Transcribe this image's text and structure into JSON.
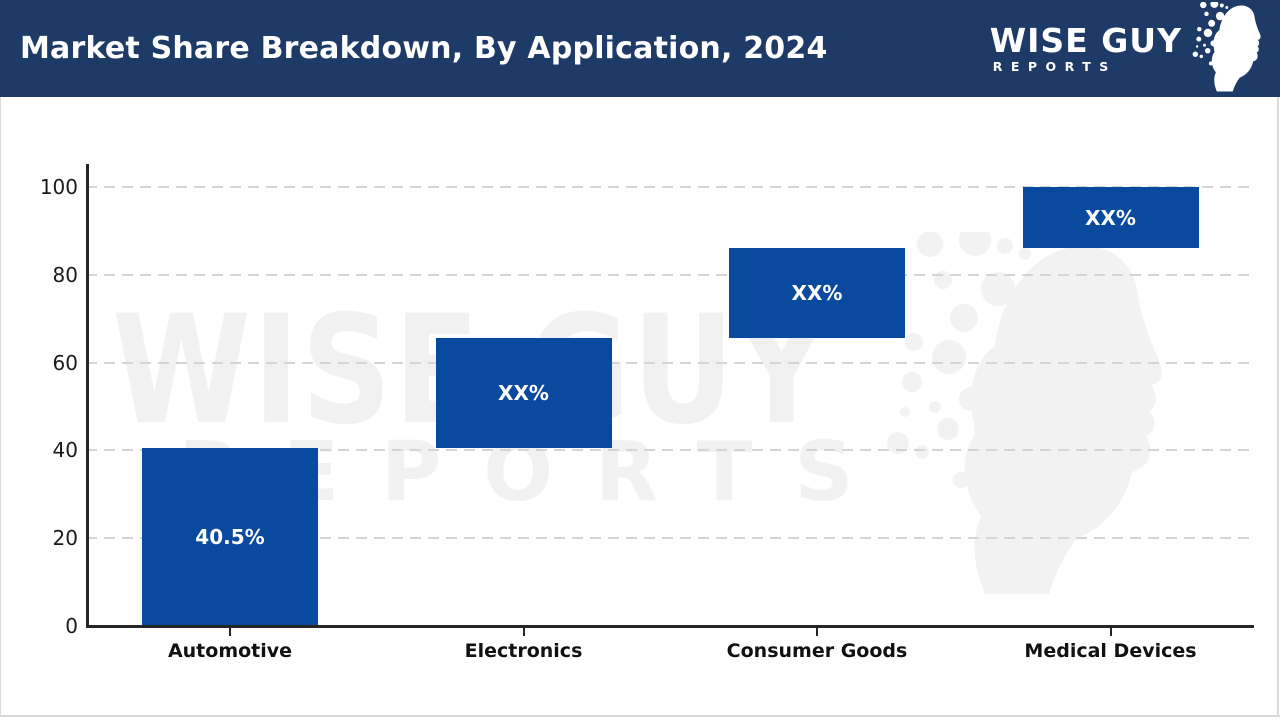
{
  "header": {
    "title": "Market Share Breakdown, By Application, 2024",
    "logo": {
      "line1": "WISE GUY",
      "line2": "REPORTS"
    }
  },
  "watermark": {
    "line1": "WISE GUY",
    "line2": "REPORTS"
  },
  "chart_data": {
    "type": "bar",
    "subtype": "waterfall",
    "title": "Market Share Breakdown, By Application, 2024",
    "categories": [
      "Automotive",
      "Electronics",
      "Consumer Goods",
      "Medical Devices"
    ],
    "segments": [
      {
        "category": "Automotive",
        "start": 0,
        "end": 40.5,
        "label": "40.5%"
      },
      {
        "category": "Electronics",
        "start": 40.5,
        "end": 65.5,
        "label": "XX%"
      },
      {
        "category": "Consumer Goods",
        "start": 65.5,
        "end": 86,
        "label": "XX%"
      },
      {
        "category": "Medical Devices",
        "start": 86,
        "end": 100,
        "label": "XX%"
      }
    ],
    "xlabel": "",
    "ylabel": "",
    "y_ticks": [
      0,
      20,
      40,
      60,
      80,
      100
    ],
    "ylim": [
      0,
      105
    ],
    "grid": "horizontal-dashed",
    "legend": "none",
    "colors": {
      "bar": "#0a4a9e",
      "bar_label": "#ffffff",
      "axis": "#262626",
      "gridline": "#d4d4d4",
      "header_bg": "#1e3a67",
      "watermark": "#f2f2f2"
    }
  }
}
